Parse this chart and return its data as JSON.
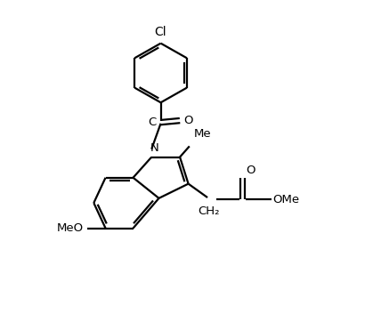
{
  "background_color": "#ffffff",
  "line_color": "#000000",
  "text_color": "#000000",
  "line_width": 1.6,
  "font_size": 9.5,
  "fig_width": 4.19,
  "fig_height": 3.71,
  "dpi": 100,
  "xlim": [
    0,
    10
  ],
  "ylim": [
    0,
    9
  ]
}
